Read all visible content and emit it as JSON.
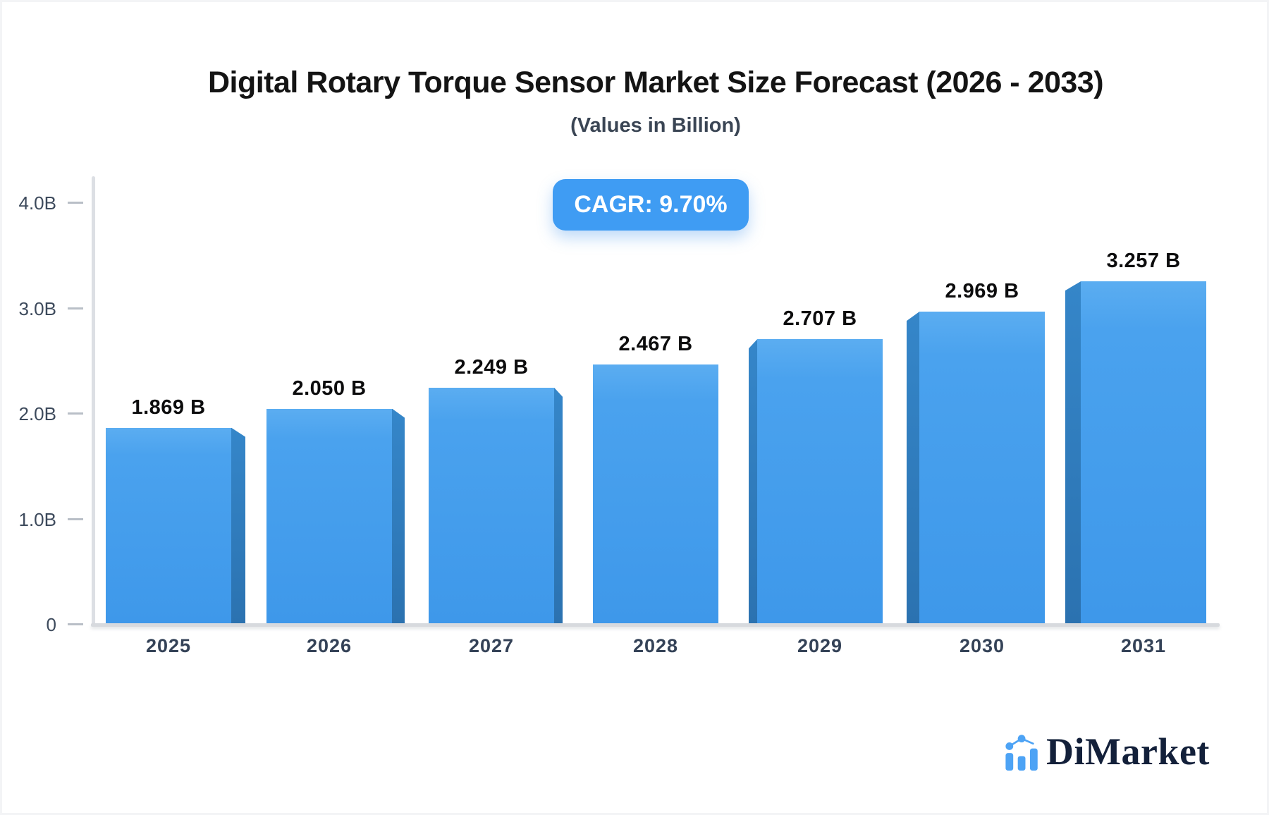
{
  "title": "Digital Rotary Torque Sensor Market Size Forecast (2026 - 2033)",
  "subtitle": "(Values in Billion)",
  "badge": {
    "label": "CAGR: 9.70%",
    "bg_color": "#3F9CF3",
    "text_color": "#ffffff"
  },
  "chart_data": {
    "type": "bar",
    "title": "Digital Rotary Torque Sensor Market Size Forecast (2026 - 2033)",
    "subtitle": "(Values in Billion)",
    "categories": [
      "2025",
      "2026",
      "2027",
      "2028",
      "2029",
      "2030",
      "2031"
    ],
    "values": [
      1.869,
      2.05,
      2.249,
      2.467,
      2.707,
      2.969,
      3.257
    ],
    "value_labels": [
      "1.869 B",
      "2.050 B",
      "2.249 B",
      "2.467 B",
      "2.707 B",
      "2.969 B",
      "3.257 B"
    ],
    "xlabel": "",
    "ylabel": "",
    "ylim": [
      0,
      4.0
    ],
    "y_ticks": [
      {
        "label": "4.0B",
        "value": 4.0
      },
      {
        "label": "3.0B",
        "value": 3.0
      },
      {
        "label": "2.0B",
        "value": 2.0
      },
      {
        "label": "1.0B",
        "value": 1.0
      },
      {
        "label": "0",
        "value": 0.0
      }
    ],
    "grid": false,
    "legend": null,
    "style_3d": true,
    "bar_color_top": "#5BADF1",
    "bar_color_bottom": "#3E98EA",
    "bar_side_color_top": "#3586C9",
    "bar_side_color_bottom": "#2B72B0"
  },
  "logo": {
    "text": "DiMarket",
    "icon": "bar-chart-logo-icon",
    "text_color": "#13203A",
    "icon_color": "#4DA3F5"
  }
}
